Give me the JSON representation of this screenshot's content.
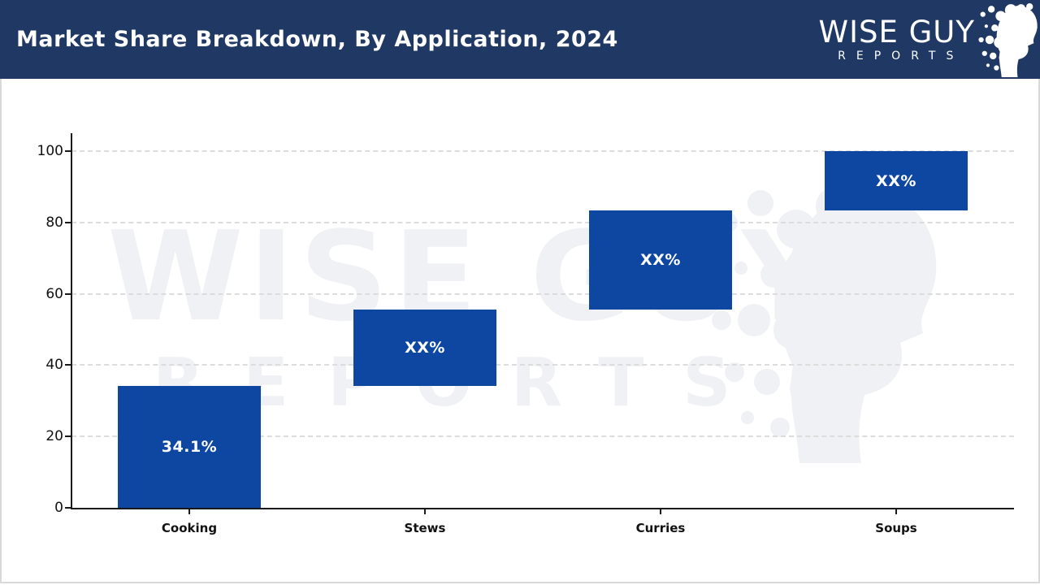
{
  "header": {
    "title": "Market Share Breakdown, By Application, 2024",
    "logo": {
      "line1": "WISE GUY",
      "line2": "REPORTS"
    }
  },
  "watermark": {
    "line1": "WISE GUY",
    "line2": "REPORTS"
  },
  "colors": {
    "header_bg": "#1f3864",
    "bar": "#0d47a1",
    "bar_label": "#ffffff",
    "grid": "#dcdcdc",
    "axis": "#1a1a1a",
    "watermark": "#f0f1f4",
    "frame": "#d9d9d9",
    "title_text": "#ffffff",
    "tick_text": "#111111"
  },
  "chart_data": {
    "type": "bar",
    "subtype": "waterfall",
    "title": "Market Share Breakdown, By Application, 2024",
    "categories": [
      "Cooking",
      "Stews",
      "Curries",
      "Soups"
    ],
    "series": [
      {
        "name": "Market Share",
        "segments": [
          {
            "category": "Cooking",
            "start": 0,
            "end": 34.1,
            "label": "34.1%"
          },
          {
            "category": "Stews",
            "start": 34.1,
            "end": 55.6,
            "label": "XX%"
          },
          {
            "category": "Curries",
            "start": 55.6,
            "end": 83.3,
            "label": "XX%"
          },
          {
            "category": "Soups",
            "start": 83.3,
            "end": 100,
            "label": "XX%"
          }
        ]
      }
    ],
    "xlabel": "",
    "ylabel": "",
    "ylim": [
      0,
      100
    ],
    "yticks": [
      0,
      20,
      40,
      60,
      80,
      100
    ],
    "grid": "horizontal-dashed",
    "legend": "none"
  }
}
